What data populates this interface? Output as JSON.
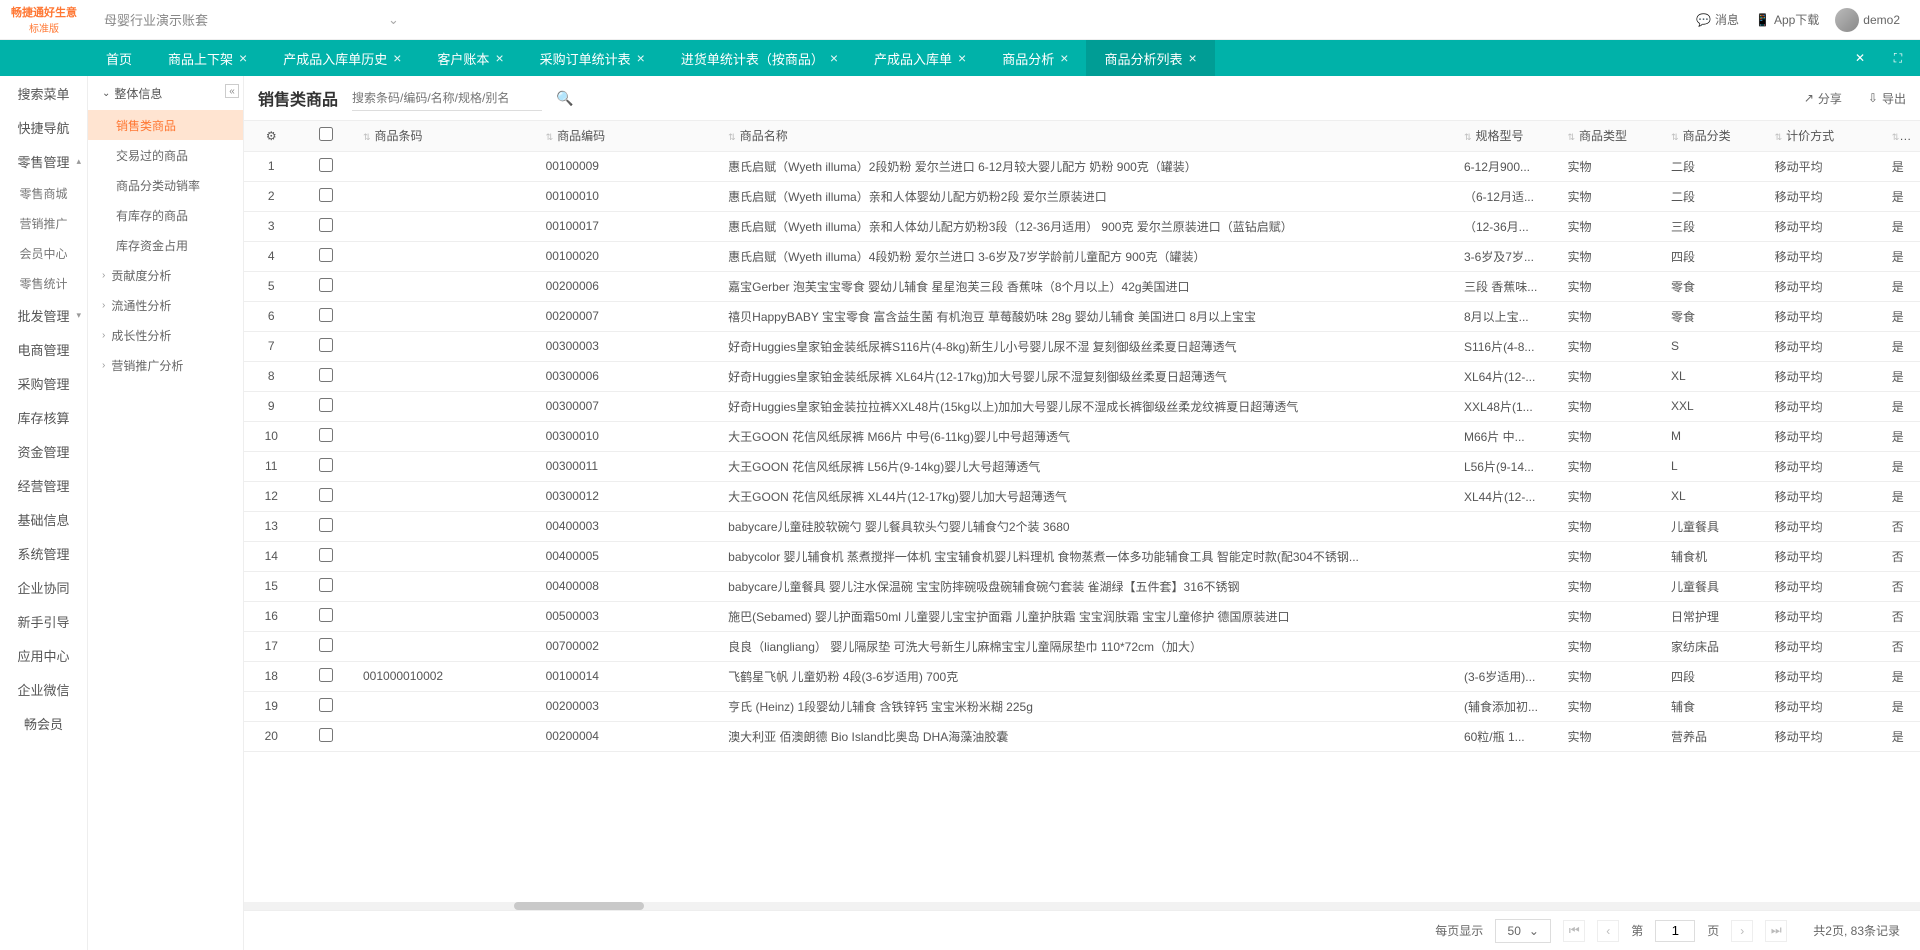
{
  "topbar": {
    "logo_main": "畅捷通好生意",
    "logo_sub": "标准版",
    "account_label": "母婴行业演示账套",
    "msg": "消息",
    "app": "App下载",
    "user": "demo2"
  },
  "tabs": [
    {
      "label": "首页",
      "closable": false
    },
    {
      "label": "商品上下架",
      "closable": true
    },
    {
      "label": "产成品入库单历史",
      "closable": true
    },
    {
      "label": "客户账本",
      "closable": true
    },
    {
      "label": "采购订单统计表",
      "closable": true
    },
    {
      "label": "进货单统计表（按商品）",
      "closable": true
    },
    {
      "label": "产成品入库单",
      "closable": true
    },
    {
      "label": "商品分析",
      "closable": true
    },
    {
      "label": "商品分析列表",
      "closable": true,
      "active": true
    }
  ],
  "sidebar": [
    {
      "label": "搜索菜单"
    },
    {
      "label": "快捷导航"
    },
    {
      "label": "零售管理",
      "expanded": true,
      "children": [
        "零售商城",
        "营销推广",
        "会员中心",
        "零售统计"
      ]
    },
    {
      "label": "批发管理",
      "collapsed": true
    },
    {
      "label": "电商管理"
    },
    {
      "label": "采购管理"
    },
    {
      "label": "库存核算"
    },
    {
      "label": "资金管理"
    },
    {
      "label": "经营管理"
    },
    {
      "label": "基础信息"
    },
    {
      "label": "系统管理"
    },
    {
      "label": "企业协同"
    },
    {
      "label": "新手引导"
    },
    {
      "label": "应用中心"
    },
    {
      "label": "企业微信"
    },
    {
      "label": "畅会员"
    }
  ],
  "panel2": {
    "section_title": "整体信息",
    "items": [
      {
        "label": "销售类商品",
        "active": true
      },
      {
        "label": "交易过的商品"
      },
      {
        "label": "商品分类动销率"
      },
      {
        "label": "有库存的商品"
      },
      {
        "label": "库存资金占用"
      }
    ],
    "expandable": [
      "贡献度分析",
      "流通性分析",
      "成长性分析",
      "营销推广分析"
    ]
  },
  "toolbar": {
    "title": "销售类商品",
    "search_placeholder": "搜索条码/编码/名称/规格/别名",
    "share": "分享",
    "export": "导出"
  },
  "table": {
    "columns": [
      "商品条码",
      "商品编码",
      "商品名称",
      "规格型号",
      "商品类型",
      "商品分类",
      "计价方式",
      "批"
    ],
    "rows": [
      {
        "n": 1,
        "barcode": "",
        "code": "00100009",
        "name": "惠氏启赋（Wyeth illuma）2段奶粉 爱尔兰进口 6-12月较大婴儿配方 奶粉 900克（罐装）",
        "spec": "6-12月900...",
        "type": "实物",
        "cat": "二段",
        "price": "移动平均",
        "w": "是"
      },
      {
        "n": 2,
        "barcode": "",
        "code": "00100010",
        "name": "惠氏启赋（Wyeth illuma）亲和人体婴幼儿配方奶粉2段 爱尔兰原装进口",
        "spec": "（6-12月适...",
        "type": "实物",
        "cat": "二段",
        "price": "移动平均",
        "w": "是"
      },
      {
        "n": 3,
        "barcode": "",
        "code": "00100017",
        "name": "惠氏启赋（Wyeth illuma）亲和人体幼儿配方奶粉3段（12-36月适用） 900克 爱尔兰原装进口（蓝钻启赋）",
        "spec": "（12-36月...",
        "type": "实物",
        "cat": "三段",
        "price": "移动平均",
        "w": "是"
      },
      {
        "n": 4,
        "barcode": "",
        "code": "00100020",
        "name": "惠氏启赋（Wyeth illuma）4段奶粉 爱尔兰进口 3-6岁及7岁学龄前儿童配方 900克（罐装）",
        "spec": "3-6岁及7岁...",
        "type": "实物",
        "cat": "四段",
        "price": "移动平均",
        "w": "是"
      },
      {
        "n": 5,
        "barcode": "",
        "code": "00200006",
        "name": "嘉宝Gerber 泡芙宝宝零食 婴幼儿辅食 星星泡芙三段 香蕉味（8个月以上）42g美国进口",
        "spec": "三段 香蕉味...",
        "type": "实物",
        "cat": "零食",
        "price": "移动平均",
        "w": "是"
      },
      {
        "n": 6,
        "barcode": "",
        "code": "00200007",
        "name": "禧贝HappyBABY 宝宝零食 富含益生菌 有机泡豆 草莓酸奶味 28g 婴幼儿辅食 美国进口 8月以上宝宝",
        "spec": "8月以上宝...",
        "type": "实物",
        "cat": "零食",
        "price": "移动平均",
        "w": "是"
      },
      {
        "n": 7,
        "barcode": "",
        "code": "00300003",
        "name": "好奇Huggies皇家铂金装纸尿裤S116片(4-8kg)新生儿小号婴儿尿不湿 复刻御级丝柔夏日超薄透气",
        "spec": "S116片(4-8...",
        "type": "实物",
        "cat": "S",
        "price": "移动平均",
        "w": "是"
      },
      {
        "n": 8,
        "barcode": "",
        "code": "00300006",
        "name": "好奇Huggies皇家铂金装纸尿裤 XL64片(12-17kg)加大号婴儿尿不湿复刻御级丝柔夏日超薄透气",
        "spec": "XL64片(12-...",
        "type": "实物",
        "cat": "XL",
        "price": "移动平均",
        "w": "是"
      },
      {
        "n": 9,
        "barcode": "",
        "code": "00300007",
        "name": "好奇Huggies皇家铂金装拉拉裤XXL48片(15kg以上)加加大号婴儿尿不湿成长裤御级丝柔龙纹裤夏日超薄透气",
        "spec": "XXL48片(1...",
        "type": "实物",
        "cat": "XXL",
        "price": "移动平均",
        "w": "是"
      },
      {
        "n": 10,
        "barcode": "",
        "code": "00300010",
        "name": "大王GOON 花信风纸尿裤 M66片 中号(6-11kg)婴儿中号超薄透气",
        "spec": "M66片 中...",
        "type": "实物",
        "cat": "M",
        "price": "移动平均",
        "w": "是"
      },
      {
        "n": 11,
        "barcode": "",
        "code": "00300011",
        "name": "大王GOON 花信风纸尿裤 L56片(9-14kg)婴儿大号超薄透气",
        "spec": "L56片(9-14...",
        "type": "实物",
        "cat": "L",
        "price": "移动平均",
        "w": "是"
      },
      {
        "n": 12,
        "barcode": "",
        "code": "00300012",
        "name": "大王GOON 花信风纸尿裤 XL44片(12-17kg)婴儿加大号超薄透气",
        "spec": "XL44片(12-...",
        "type": "实物",
        "cat": "XL",
        "price": "移动平均",
        "w": "是"
      },
      {
        "n": 13,
        "barcode": "",
        "code": "00400003",
        "name": "babycare儿童硅胶软碗勺 婴儿餐具软头勺婴儿辅食勺2个装 3680",
        "spec": "",
        "type": "实物",
        "cat": "儿童餐具",
        "price": "移动平均",
        "w": "否"
      },
      {
        "n": 14,
        "barcode": "",
        "code": "00400005",
        "name": "babycolor 婴儿辅食机 蒸煮搅拌一体机 宝宝辅食机婴儿料理机 食物蒸煮一体多功能辅食工具 智能定时款(配304不锈钢...",
        "spec": "",
        "type": "实物",
        "cat": "辅食机",
        "price": "移动平均",
        "w": "否"
      },
      {
        "n": 15,
        "barcode": "",
        "code": "00400008",
        "name": "babycare儿童餐具 婴儿注水保温碗 宝宝防摔碗吸盘碗辅食碗勺套装 雀湖绿【五件套】316不锈钢",
        "spec": "",
        "type": "实物",
        "cat": "儿童餐具",
        "price": "移动平均",
        "w": "否"
      },
      {
        "n": 16,
        "barcode": "",
        "code": "00500003",
        "name": "施巴(Sebamed) 婴儿护面霜50ml 儿童婴儿宝宝护面霜 儿童护肤霜 宝宝润肤霜 宝宝儿童修护 德国原装进口",
        "spec": "",
        "type": "实物",
        "cat": "日常护理",
        "price": "移动平均",
        "w": "否"
      },
      {
        "n": 17,
        "barcode": "",
        "code": "00700002",
        "name": "良良（liangliang） 婴儿隔尿垫 可洗大号新生儿麻棉宝宝儿童隔尿垫巾 110*72cm（加大）",
        "spec": "",
        "type": "实物",
        "cat": "家纺床品",
        "price": "移动平均",
        "w": "否"
      },
      {
        "n": 18,
        "barcode": "001000010002",
        "code": "00100014",
        "name": "飞鹤星飞帆 儿童奶粉 4段(3-6岁适用) 700克",
        "spec": "(3-6岁适用)...",
        "type": "实物",
        "cat": "四段",
        "price": "移动平均",
        "w": "是"
      },
      {
        "n": 19,
        "barcode": "",
        "code": "00200003",
        "name": "亨氏 (Heinz) 1段婴幼儿辅食 含铁锌钙 宝宝米粉米糊 225g",
        "spec": "(辅食添加初...",
        "type": "实物",
        "cat": "辅食",
        "price": "移动平均",
        "w": "是"
      },
      {
        "n": 20,
        "barcode": "",
        "code": "00200004",
        "name": "澳大利亚 佰澳朗德 Bio Island比奥岛 DHA海藻油胶囊",
        "spec": "60粒/瓶 1...",
        "type": "实物",
        "cat": "营养品",
        "price": "移动平均",
        "w": "是"
      }
    ]
  },
  "pagination": {
    "per_page_label": "每页显示",
    "per_page_value": "50",
    "page_label_prefix": "第",
    "current_page": "1",
    "page_label_suffix": "页",
    "summary": "共2页, 83条记录"
  }
}
